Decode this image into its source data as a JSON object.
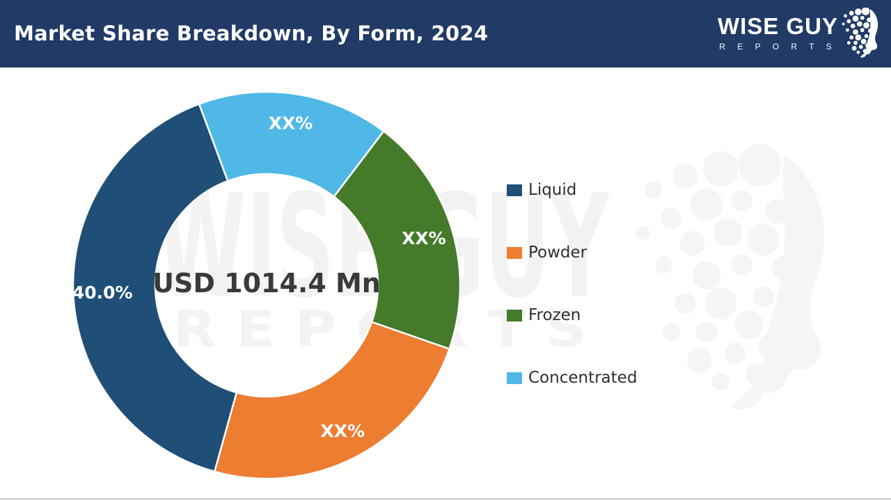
{
  "header": {
    "title": "Market Share Breakdown, By Form, 2024",
    "bg_color": "#213a66",
    "logo": {
      "line1": "WISE GUY",
      "line2": "R E P O R T S"
    }
  },
  "chart_data": {
    "type": "pie",
    "donut": true,
    "title": "Market Share Breakdown, By Form, 2024",
    "center_label": "USD 1014.4 Mn",
    "legend_position": "right",
    "start_angle_deg": 339.6,
    "direction": "counterclockwise",
    "slices": [
      {
        "label": "Liquid",
        "value": 40.0,
        "display": "40.0%",
        "color": "#1f4f77"
      },
      {
        "label": "Powder",
        "value": 24.0,
        "display": "XX%",
        "color": "#ed7d31"
      },
      {
        "label": "Frozen",
        "value": 20.0,
        "display": "XX%",
        "color": "#447a2a"
      },
      {
        "label": "Concentrated",
        "value": 16.0,
        "display": "XX%",
        "color": "#4fb8e7"
      }
    ]
  },
  "watermark": {
    "line1": "WISE GUY",
    "line2": "R E P O R T S"
  },
  "colors": {
    "header_bg": "#213a66",
    "center_text": "#3a3a3a",
    "watermark_text": "#f3f3f3",
    "watermark_face": "#f5f5f5",
    "bottom_rule": "#cccccc"
  }
}
